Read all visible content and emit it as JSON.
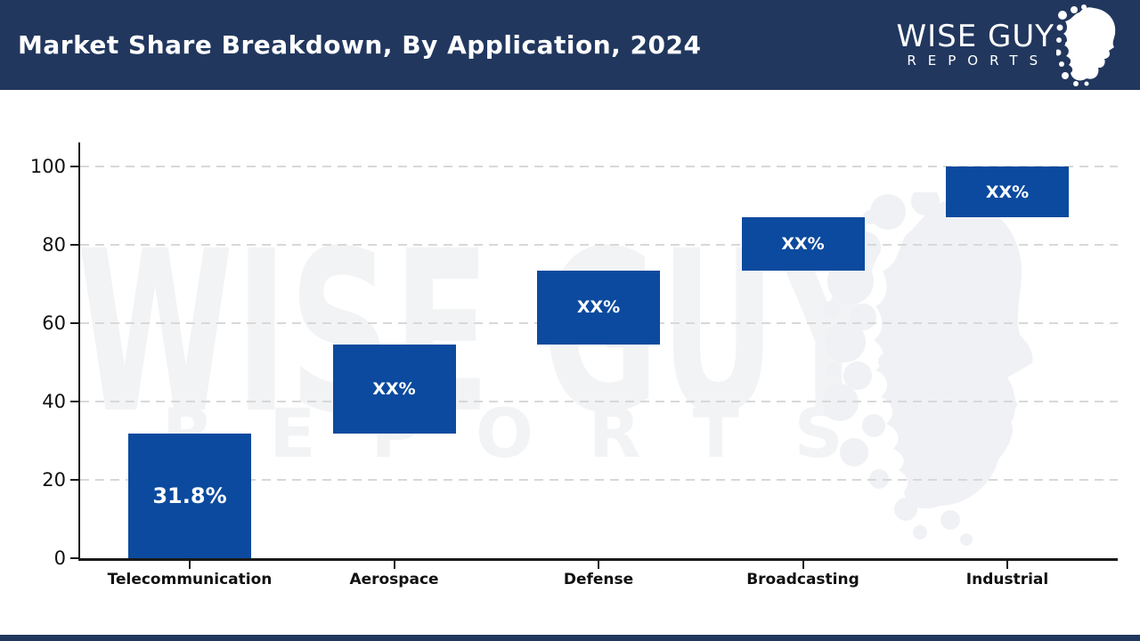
{
  "header": {
    "title": "Market Share Breakdown, By Application, 2024",
    "logo": {
      "line1": "WISE GUY",
      "line2": "REPORTS"
    }
  },
  "watermark": {
    "line1": "WISE GUY",
    "line2": "REPORTS"
  },
  "colors": {
    "header_bg": "#21375e",
    "bar": "#0b4a9e",
    "axis": "#1a1a1a",
    "grid": "#d8d8d8",
    "bar_label_text": "#ffffff",
    "tick_text": "#111111",
    "watermark": "#f2f3f5"
  },
  "chart_data": {
    "type": "bar",
    "subtype": "waterfall",
    "title": "Market Share Breakdown, By Application, 2024",
    "xlabel": "",
    "ylabel": "",
    "ylim": [
      0,
      100
    ],
    "yticks": [
      0,
      20,
      40,
      60,
      80,
      100
    ],
    "grid": "horizontal dashed",
    "legend": "none",
    "categories": [
      "Telecommunication",
      "Aerospace",
      "Defense",
      "Broadcasting",
      "Industrial"
    ],
    "bars": [
      {
        "category": "Telecommunication",
        "start": 0,
        "end": 31.8,
        "label": "31.8%"
      },
      {
        "category": "Aerospace",
        "start": 31.8,
        "end": 54.5,
        "label": "XX%"
      },
      {
        "category": "Defense",
        "start": 54.5,
        "end": 73.5,
        "label": "XX%"
      },
      {
        "category": "Broadcasting",
        "start": 73.5,
        "end": 87,
        "label": "XX%"
      },
      {
        "category": "Industrial",
        "start": 87,
        "end": 100,
        "label": "XX%"
      }
    ]
  }
}
